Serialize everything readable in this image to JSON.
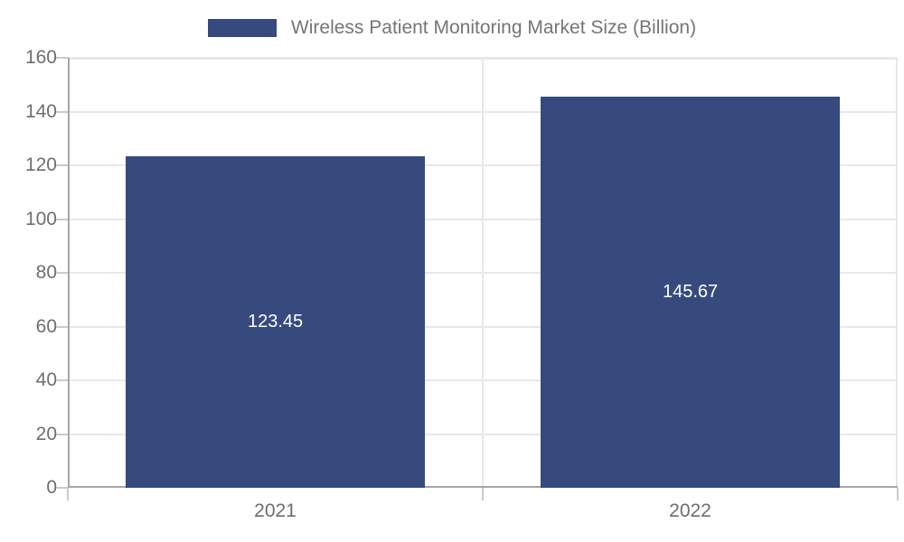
{
  "chart_data": {
    "type": "bar",
    "title": "Wireless Patient Monitoring Market Size (Billion)",
    "categories": [
      "2021",
      "2022"
    ],
    "values": [
      123.45,
      145.67
    ],
    "value_labels": [
      "123.45",
      "145.67"
    ],
    "xlabel": "",
    "ylabel": "",
    "ylim": [
      0,
      160
    ],
    "yticks": [
      0,
      20,
      40,
      60,
      80,
      100,
      120,
      140,
      160
    ],
    "grid": "horizontal-on-plus-category-boundary",
    "legend_position": "top-center",
    "colors": {
      "bar": "#364a7e",
      "value_label": "#ffffff",
      "tick_label": "#6e6e6e",
      "legend_text": "#757575",
      "gridline": "#e8e8e8",
      "axis_line": "#a6a6a6",
      "outer_tick": "#c6cbd7"
    }
  }
}
